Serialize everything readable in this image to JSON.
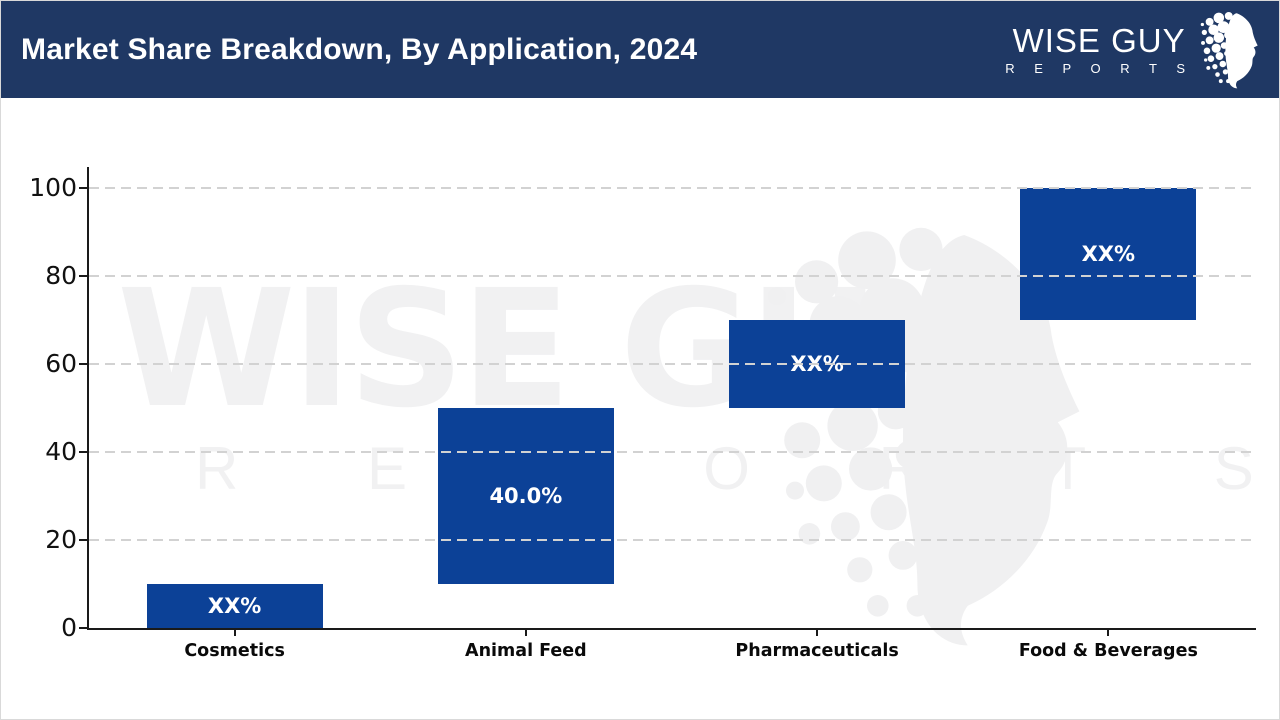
{
  "header": {
    "title": "Market Share Breakdown, By Application, 2024",
    "logo": {
      "line1": "WISE GUY",
      "line2": "R E P O R T S"
    }
  },
  "watermark": {
    "line1": "WISE GUY",
    "line2": "R E P O R T S"
  },
  "chart_data": {
    "type": "bar",
    "subtype": "floating-waterfall",
    "title": "Market Share Breakdown, By Application, 2024",
    "categories": [
      "Cosmetics",
      "Animal Feed",
      "Pharmaceuticals",
      "Food & Beverages"
    ],
    "series": [
      {
        "name": "Market share (%)",
        "base": [
          0,
          10,
          50,
          70
        ],
        "values": [
          10,
          40,
          20,
          30
        ]
      }
    ],
    "bar_labels": [
      "XX%",
      "40.0%",
      "XX%",
      "XX%"
    ],
    "ylim": [
      0,
      100
    ],
    "yticks": [
      0,
      20,
      40,
      60,
      80,
      100
    ],
    "grid": "horizontal dashed gridlines drawn above bars",
    "legend": "none",
    "xlabel": "",
    "ylabel": "",
    "colors": {
      "bar": "#0c4197",
      "header_bg": "#1f3864",
      "gridline": "#d2d2d2",
      "axis": "#1a1a1a",
      "watermark": "#f1f1f2",
      "bar_label_text": "#ffffff",
      "title_text": "#ffffff"
    }
  }
}
